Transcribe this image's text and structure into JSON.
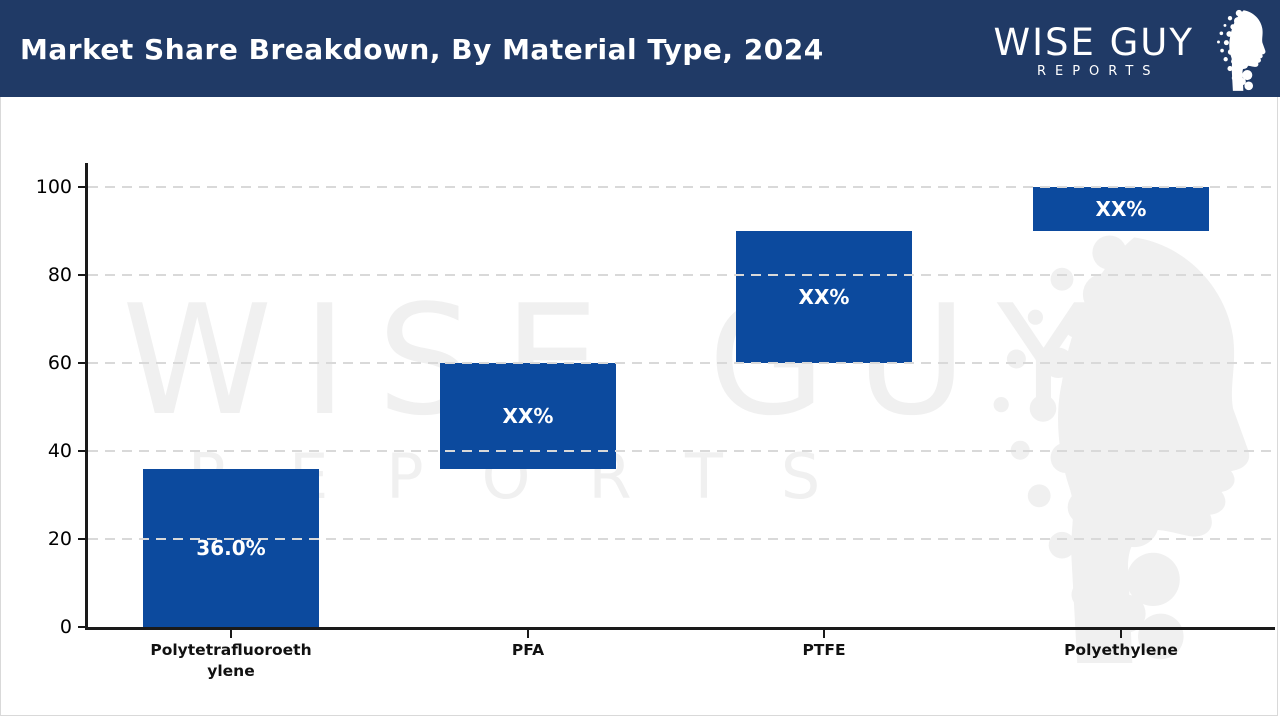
{
  "header": {
    "title": "Market Share Breakdown, By Material Type, 2024",
    "bg_color": "#203a66",
    "logo": {
      "line1": "WISE GUY",
      "line2": "REPORTS"
    }
  },
  "watermark": {
    "line1": "WISE GUY",
    "line2": "REPORTS"
  },
  "chart_data": {
    "type": "bar",
    "variant": "waterfall",
    "title": "Market Share Breakdown, By Material Type, 2024",
    "categories": [
      "Polytetrafluoroethylene",
      "PFA",
      "PTFE",
      "Polyethylene"
    ],
    "category_display_lines": [
      [
        "Polytetrafluoroeth",
        "ylene"
      ],
      [
        "PFA"
      ],
      [
        "PTFE"
      ],
      [
        "Polyethylene"
      ]
    ],
    "segments": [
      {
        "category": "Polytetrafluoroethylene",
        "start": 0,
        "end": 36,
        "label": "36.0%"
      },
      {
        "category": "PFA",
        "start": 36,
        "end": 60,
        "label": "XX%"
      },
      {
        "category": "PTFE",
        "start": 60,
        "end": 90,
        "label": "XX%"
      },
      {
        "category": "Polyethylene",
        "start": 90,
        "end": 100,
        "label": "XX%"
      }
    ],
    "xlabel": "",
    "ylabel": "",
    "ylim": [
      0,
      100
    ],
    "yticks": [
      0,
      20,
      40,
      60,
      80,
      100
    ],
    "grid": {
      "axis": "y",
      "style": "dashed",
      "drawn_over_bars": true
    },
    "legend": "none",
    "colors": {
      "bar": "#0c4a9e",
      "bar_label": "#ffffff",
      "axis": "#1a1a1a",
      "gridline": "#d9d9d9",
      "header_bg": "#203a66",
      "watermark": "#f0f0f0"
    }
  }
}
